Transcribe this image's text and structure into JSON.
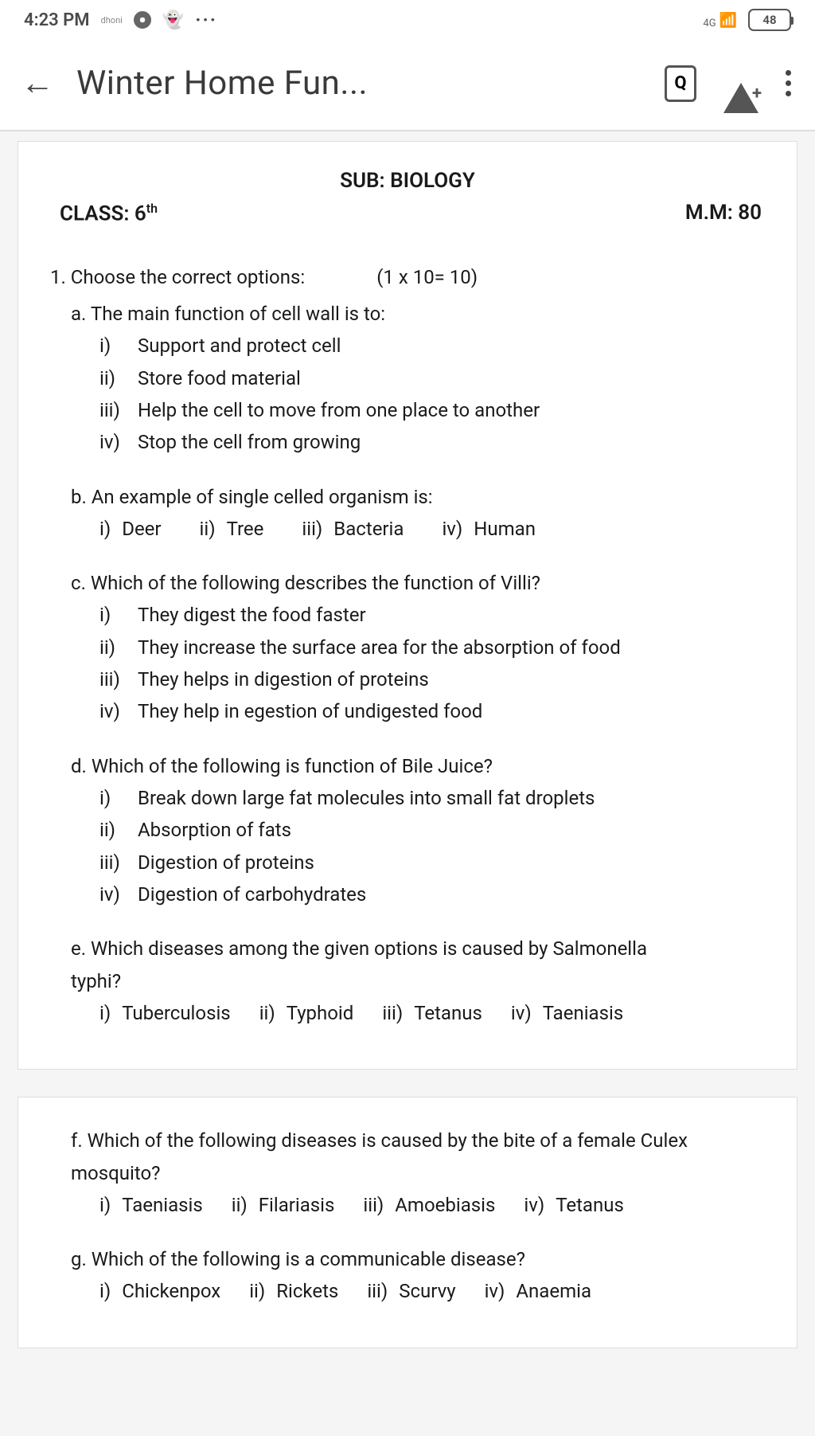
{
  "statusBar": {
    "time": "4:23 PM",
    "carrier": "dhoni",
    "netLabel": "4G",
    "batteryLevel": "48"
  },
  "header": {
    "title": "Winter Home Fun..."
  },
  "doc": {
    "subject": "SUB: BIOLOGY",
    "classLabel": "CLASS: 6",
    "classSup": "th",
    "mm": "M.M: 80",
    "section1": {
      "heading": "1. Choose the correct options:",
      "marks": "(1 x 10= 10)"
    },
    "qa": {
      "prompt": "a. The main function of cell wall is to:",
      "opts": [
        {
          "n": "i)",
          "t": "Support and protect cell"
        },
        {
          "n": "ii)",
          "t": "Store food material"
        },
        {
          "n": "iii)",
          "t": "Help the cell to move from one place to another"
        },
        {
          "n": "iv)",
          "t": "Stop the cell from growing"
        }
      ]
    },
    "qb": {
      "prompt": "b. An example of single celled organism is:",
      "opts": [
        {
          "n": "i)",
          "t": "Deer"
        },
        {
          "n": "ii)",
          "t": "Tree"
        },
        {
          "n": "iii)",
          "t": "Bacteria"
        },
        {
          "n": "iv)",
          "t": "Human"
        }
      ]
    },
    "qc": {
      "prompt": "c. Which of the following describes the function of Villi?",
      "opts": [
        {
          "n": "i)",
          "t": "They digest the food faster"
        },
        {
          "n": "ii)",
          "t": "They increase the surface area for the absorption of food"
        },
        {
          "n": "iii)",
          "t": "They helps in digestion of proteins"
        },
        {
          "n": "iv)",
          "t": "They help in egestion of undigested food"
        }
      ]
    },
    "qd": {
      "prompt": "d. Which of the following is function of Bile Juice?",
      "opts": [
        {
          "n": "i)",
          "t": "Break down large fat molecules into small fat droplets"
        },
        {
          "n": "ii)",
          "t": "Absorption of fats"
        },
        {
          "n": "iii)",
          "t": "Digestion of proteins"
        },
        {
          "n": "iv)",
          "t": "Digestion of carbohydrates"
        }
      ]
    },
    "qe": {
      "prompt": "e. Which diseases among the given options is caused by Salmonella typhi?",
      "opts": [
        {
          "n": "i)",
          "t": "Tuberculosis"
        },
        {
          "n": "ii)",
          "t": "Typhoid"
        },
        {
          "n": "iii)",
          "t": "Tetanus"
        },
        {
          "n": "iv)",
          "t": "Taeniasis"
        }
      ]
    },
    "qf": {
      "prompt": "f. Which of the following diseases is caused by the bite of a female Culex mosquito?",
      "opts": [
        {
          "n": "i)",
          "t": "Taeniasis"
        },
        {
          "n": "ii)",
          "t": "Filariasis"
        },
        {
          "n": "iii)",
          "t": "Amoebiasis"
        },
        {
          "n": "iv)",
          "t": "Tetanus"
        }
      ]
    },
    "qg": {
      "prompt": "g. Which of the following is a communicable disease?",
      "opts": [
        {
          "n": "i)",
          "t": "Chickenpox"
        },
        {
          "n": "ii)",
          "t": "Rickets"
        },
        {
          "n": "iii)",
          "t": "Scurvy"
        },
        {
          "n": "iv)",
          "t": "Anaemia"
        }
      ]
    }
  }
}
